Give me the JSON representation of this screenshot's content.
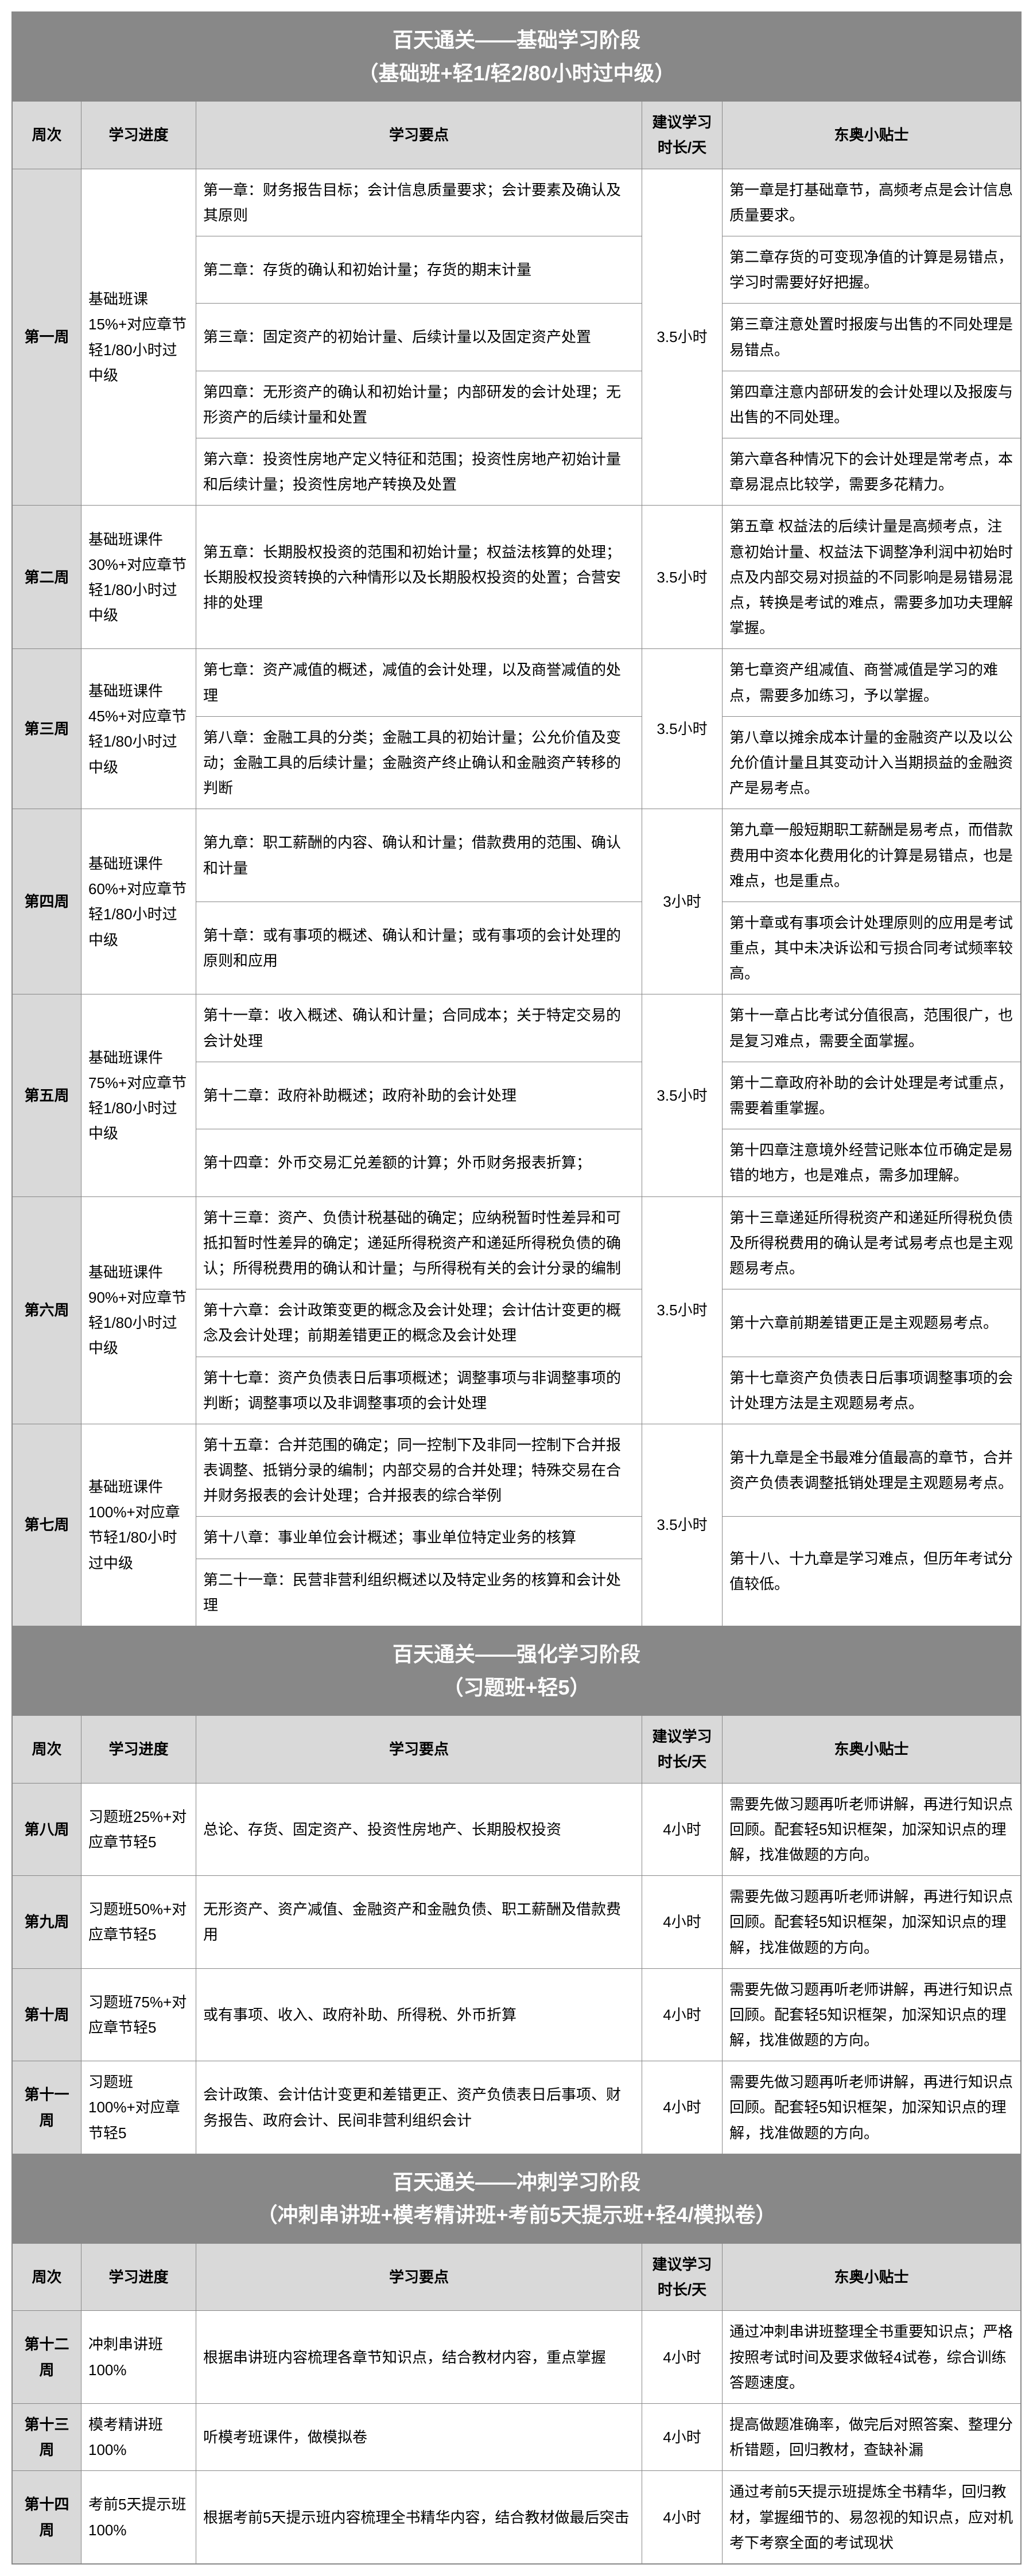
{
  "colors": {
    "header_bg": "#888888",
    "header_fg": "#ffffff",
    "th_bg": "#d9d9d9",
    "border": "#888888",
    "bg": "#ffffff",
    "text": "#000000"
  },
  "typography": {
    "header_fontsize_pt": 27,
    "cell_fontsize_pt": 20,
    "font_family": "Microsoft YaHei"
  },
  "columns": {
    "week": "周次",
    "progress": "学习进度",
    "points": "学习要点",
    "hours": "建议学习时长/天",
    "tips": "东奥小贴士"
  },
  "sections": [
    {
      "title_line1": "百天通关——基础学习阶段",
      "title_line2": "（基础班+轻1/轻2/80小时过中级）",
      "weeks": [
        {
          "week": "第一周",
          "progress": "基础班课15%+对应章节轻1/80小时过中级",
          "hours": "3.5小时",
          "rows": [
            {
              "point": "第一章：财务报告目标；会计信息质量要求；会计要素及确认及其原则",
              "tip": "第一章是打基础章节，高频考点是会计信息质量要求。"
            },
            {
              "point": "第二章：存货的确认和初始计量；存货的期末计量",
              "tip": "第二章存货的可变现净值的计算是易错点，学习时需要好好把握。"
            },
            {
              "point": "第三章：固定资产的初始计量、后续计量以及固定资产处置",
              "tip": "第三章注意处置时报废与出售的不同处理是易错点。"
            },
            {
              "point": "第四章：无形资产的确认和初始计量；内部研发的会计处理；无形资产的后续计量和处置",
              "tip": "第四章注意内部研发的会计处理以及报废与出售的不同处理。"
            },
            {
              "point": "第六章：投资性房地产定义特征和范围；投资性房地产初始计量和后续计量；投资性房地产转换及处置",
              "tip": "第六章各种情况下的会计处理是常考点，本章易混点比较学，需要多花精力。"
            }
          ]
        },
        {
          "week": "第二周",
          "progress": "基础班课件30%+对应章节轻1/80小时过中级",
          "hours": "3.5小时",
          "rows": [
            {
              "point": "第五章：长期股权投资的范围和初始计量；权益法核算的处理；长期股权投资转换的六种情形以及长期股权投资的处置；合营安排的处理",
              "tip": "第五章 权益法的后续计量是高频考点，注意初始计量、权益法下调整净利润中初始时点及内部交易对损益的不同影响是易错易混点，转换是考试的难点，需要多加功夫理解掌握。"
            }
          ]
        },
        {
          "week": "第三周",
          "progress": "基础班课件45%+对应章节轻1/80小时过中级",
          "hours": "3.5小时",
          "rows": [
            {
              "point": "第七章：资产减值的概述，减值的会计处理，以及商誉减值的处理",
              "tip": "第七章资产组减值、商誉减值是学习的难点，需要多加练习，予以掌握。"
            },
            {
              "point": "第八章：金融工具的分类；金融工具的初始计量；公允价值及变动；金融工具的后续计量；金融资产终止确认和金融资产转移的判断",
              "tip": "第八章以摊余成本计量的金融资产以及以公允价值计量且其变动计入当期损益的金融资产是易考点。"
            }
          ]
        },
        {
          "week": "第四周",
          "progress": "基础班课件60%+对应章节轻1/80小时过中级",
          "hours": "3小时",
          "rows": [
            {
              "point": "第九章：职工薪酬的内容、确认和计量；借款费用的范围、确认和计量",
              "tip": "第九章一般短期职工薪酬是易考点，而借款费用中资本化费用化的计算是易错点，也是难点，也是重点。"
            },
            {
              "point": "第十章：或有事项的概述、确认和计量；或有事项的会计处理的原则和应用",
              "tip": "第十章或有事项会计处理原则的应用是考试重点，其中未决诉讼和亏损合同考试频率较高。"
            }
          ]
        },
        {
          "week": "第五周",
          "progress": "基础班课件75%+对应章节轻1/80小时过中级",
          "hours": "3.5小时",
          "rows": [
            {
              "point": "第十一章：收入概述、确认和计量；合同成本；关于特定交易的会计处理",
              "tip": "第十一章占比考试分值很高，范围很广，也是复习难点，需要全面掌握。"
            },
            {
              "point": "第十二章：政府补助概述；政府补助的会计处理",
              "tip": "第十二章政府补助的会计处理是考试重点，需要着重掌握。"
            },
            {
              "point": "第十四章：外币交易汇兑差额的计算；外币财务报表折算；",
              "tip": "第十四章注意境外经营记账本位币确定是易错的地方，也是难点，需多加理解。"
            }
          ]
        },
        {
          "week": "第六周",
          "progress": "基础班课件90%+对应章节轻1/80小时过中级",
          "hours": "3.5小时",
          "rows": [
            {
              "point": "第十三章：资产、负债计税基础的确定；应纳税暂时性差异和可抵扣暂时性差异的确定；递延所得税资产和递延所得税负债的确认；所得税费用的确认和计量；与所得税有关的会计分录的编制",
              "tip": "第十三章递延所得税资产和递延所得税负债及所得税费用的确认是考试易考点也是主观题易考点。"
            },
            {
              "point": "第十六章：会计政策变更的概念及会计处理；会计估计变更的概念及会计处理；前期差错更正的概念及会计处理",
              "tip": "第十六章前期差错更正是主观题易考点。"
            },
            {
              "point": "第十七章：资产负债表日后事项概述；调整事项与非调整事项的判断；调整事项以及非调整事项的会计处理",
              "tip": "第十七章资产负债表日后事项调整事项的会计处理方法是主观题易考点。"
            }
          ]
        },
        {
          "week": "第七周",
          "progress": "基础班课件100%+对应章节轻1/80小时过中级",
          "hours": "3.5小时",
          "rows": [
            {
              "point": "第十五章：合并范围的确定；同一控制下及非同一控制下合并报表调整、抵销分录的编制；内部交易的合并处理；特殊交易在合并财务报表的会计处理；合并报表的综合举例",
              "tip": "第十九章是全书最难分值最高的章节，合并资产负债表调整抵销处理是主观题易考点。"
            },
            {
              "point": "第十八章：事业单位会计概述；事业单位特定业务的核算",
              "tip": "第十八、十九章是学习难点，但历年考试分值较低。"
            },
            {
              "point": "第二十一章：民营非营利组织概述以及特定业务的核算和会计处理",
              "tip": ""
            }
          ]
        }
      ]
    },
    {
      "title_line1": "百天通关——强化学习阶段",
      "title_line2": "（习题班+轻5）",
      "weeks": [
        {
          "week": "第八周",
          "progress": "习题班25%+对应章节轻5",
          "hours": "4小时",
          "rows": [
            {
              "point": "总论、存货、固定资产、投资性房地产、长期股权投资",
              "tip": "需要先做习题再听老师讲解，再进行知识点回顾。配套轻5知识框架，加深知识点的理解，找准做题的方向。"
            }
          ]
        },
        {
          "week": "第九周",
          "progress": "习题班50%+对应章节轻5",
          "hours": "4小时",
          "rows": [
            {
              "point": "无形资产、资产减值、金融资产和金融负债、职工薪酬及借款费用",
              "tip": "需要先做习题再听老师讲解，再进行知识点回顾。配套轻5知识框架，加深知识点的理解，找准做题的方向。"
            }
          ]
        },
        {
          "week": "第十周",
          "progress": "习题班75%+对应章节轻5",
          "hours": "4小时",
          "rows": [
            {
              "point": "或有事项、收入、政府补助、所得税、外币折算",
              "tip": "需要先做习题再听老师讲解，再进行知识点回顾。配套轻5知识框架，加深知识点的理解，找准做题的方向。"
            }
          ]
        },
        {
          "week": "第十一周",
          "progress": "习题班100%+对应章节轻5",
          "hours": "4小时",
          "rows": [
            {
              "point": "会计政策、会计估计变更和差错更正、资产负债表日后事项、财务报告、政府会计、民间非营利组织会计",
              "tip": "需要先做习题再听老师讲解，再进行知识点回顾。配套轻5知识框架，加深知识点的理解，找准做题的方向。"
            }
          ]
        }
      ]
    },
    {
      "title_line1": "百天通关——冲刺学习阶段",
      "title_line2": "（冲刺串讲班+模考精讲班+考前5天提示班+轻4/模拟卷）",
      "weeks": [
        {
          "week": "第十二周",
          "progress": "冲刺串讲班100%",
          "hours": "4小时",
          "rows": [
            {
              "point": "根据串讲班内容梳理各章节知识点，结合教材内容，重点掌握",
              "tip": "通过冲刺串讲班整理全书重要知识点；严格按照考试时间及要求做轻4试卷，综合训练答题速度。"
            }
          ]
        },
        {
          "week": "第十三周",
          "progress": "模考精讲班100%",
          "hours": "4小时",
          "rows": [
            {
              "point": "听模考班课件，做模拟卷",
              "tip": "提高做题准确率，做完后对照答案、整理分析错题，回归教材，查缺补漏"
            }
          ]
        },
        {
          "week": "第十四周",
          "progress": "考前5天提示班100%",
          "hours": "4小时",
          "rows": [
            {
              "point": "根据考前5天提示班内容梳理全书精华内容，结合教材做最后突击",
              "tip": "通过考前5天提示班提炼全书精华，回归教材，掌握细节的、易忽视的知识点，应对机考下考察全面的考试现状"
            }
          ]
        }
      ]
    }
  ]
}
